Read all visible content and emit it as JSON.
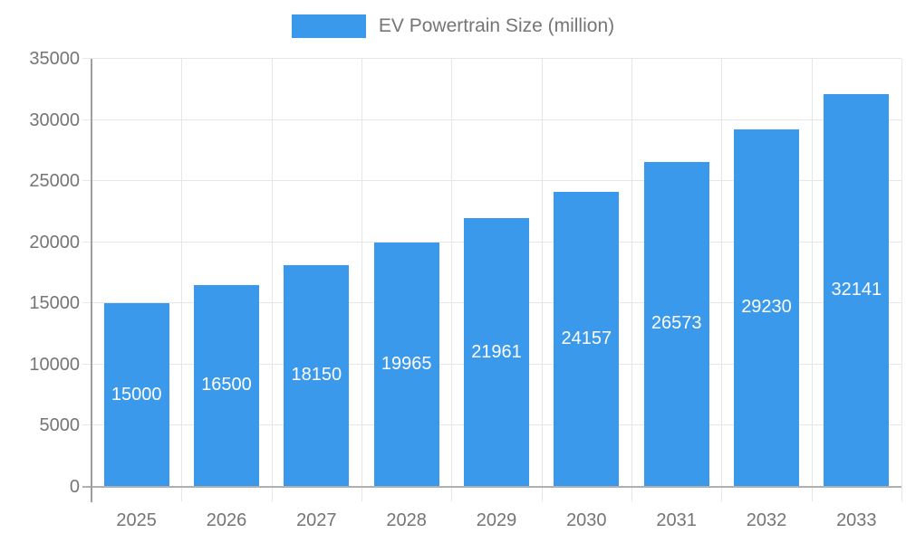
{
  "chart_data": {
    "type": "bar",
    "title": "EV Powertrain Size (million)",
    "legend": {
      "label": "EV Powertrain Size (million)",
      "position": "top"
    },
    "categories": [
      "2025",
      "2026",
      "2027",
      "2028",
      "2029",
      "2030",
      "2031",
      "2032",
      "2033"
    ],
    "values": [
      15000,
      16500,
      18150,
      19965,
      21961,
      24157,
      26573,
      29230,
      32141
    ],
    "bar_labels": [
      "15000",
      "16500",
      "18150",
      "19965",
      "21961",
      "24157",
      "26573",
      "29230",
      "32141"
    ],
    "xlabel": "",
    "ylabel": "",
    "ylim": [
      0,
      35000
    ],
    "yticks": [
      0,
      5000,
      10000,
      15000,
      20000,
      25000,
      30000,
      35000
    ],
    "ytick_labels": [
      "0",
      "5000",
      "10000",
      "15000",
      "20000",
      "25000",
      "30000",
      "35000"
    ],
    "grid": true,
    "colors": {
      "bar": "#3B99EC",
      "grid": "#E6E6E6",
      "baseline": "#B0B0B0",
      "axis": "#9E9E9E",
      "tick_text": "#757575",
      "value_label": "#FFFFFF",
      "background": "#FFFFFF"
    }
  }
}
